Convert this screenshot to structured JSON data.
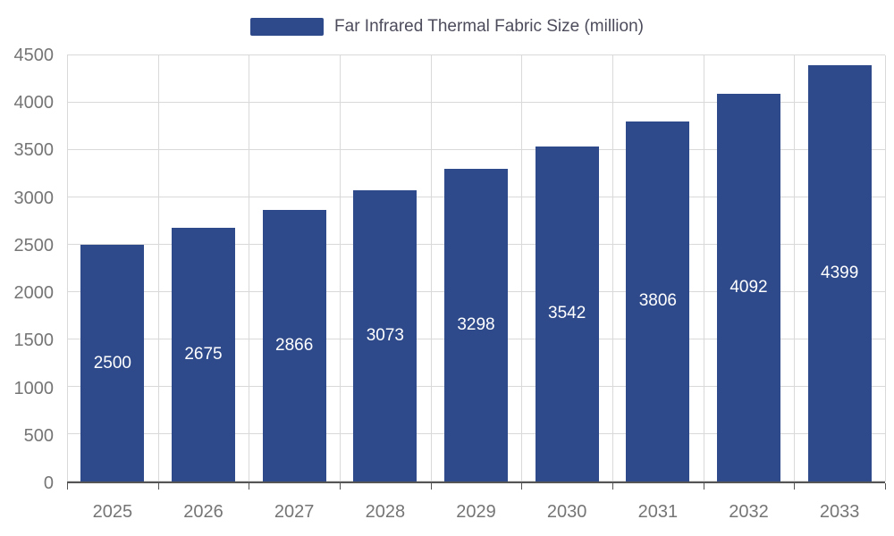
{
  "chart_data": {
    "type": "bar",
    "title": "Far Infrared Thermal Fabric Size (million)",
    "categories": [
      "2025",
      "2026",
      "2027",
      "2028",
      "2029",
      "2030",
      "2031",
      "2032",
      "2033"
    ],
    "values": [
      2500,
      2675,
      2866,
      3073,
      3298,
      3542,
      3806,
      4092,
      4399
    ],
    "xlabel": "",
    "ylabel": "",
    "ylim": [
      0,
      4500
    ],
    "ytick_step": 500,
    "grid": true,
    "legend_position": "top",
    "bar_color": "#2f4a8a",
    "value_label_color": "#ffffff",
    "axis_text_color": "#757575",
    "gridline_color": "#d9d9d9"
  }
}
